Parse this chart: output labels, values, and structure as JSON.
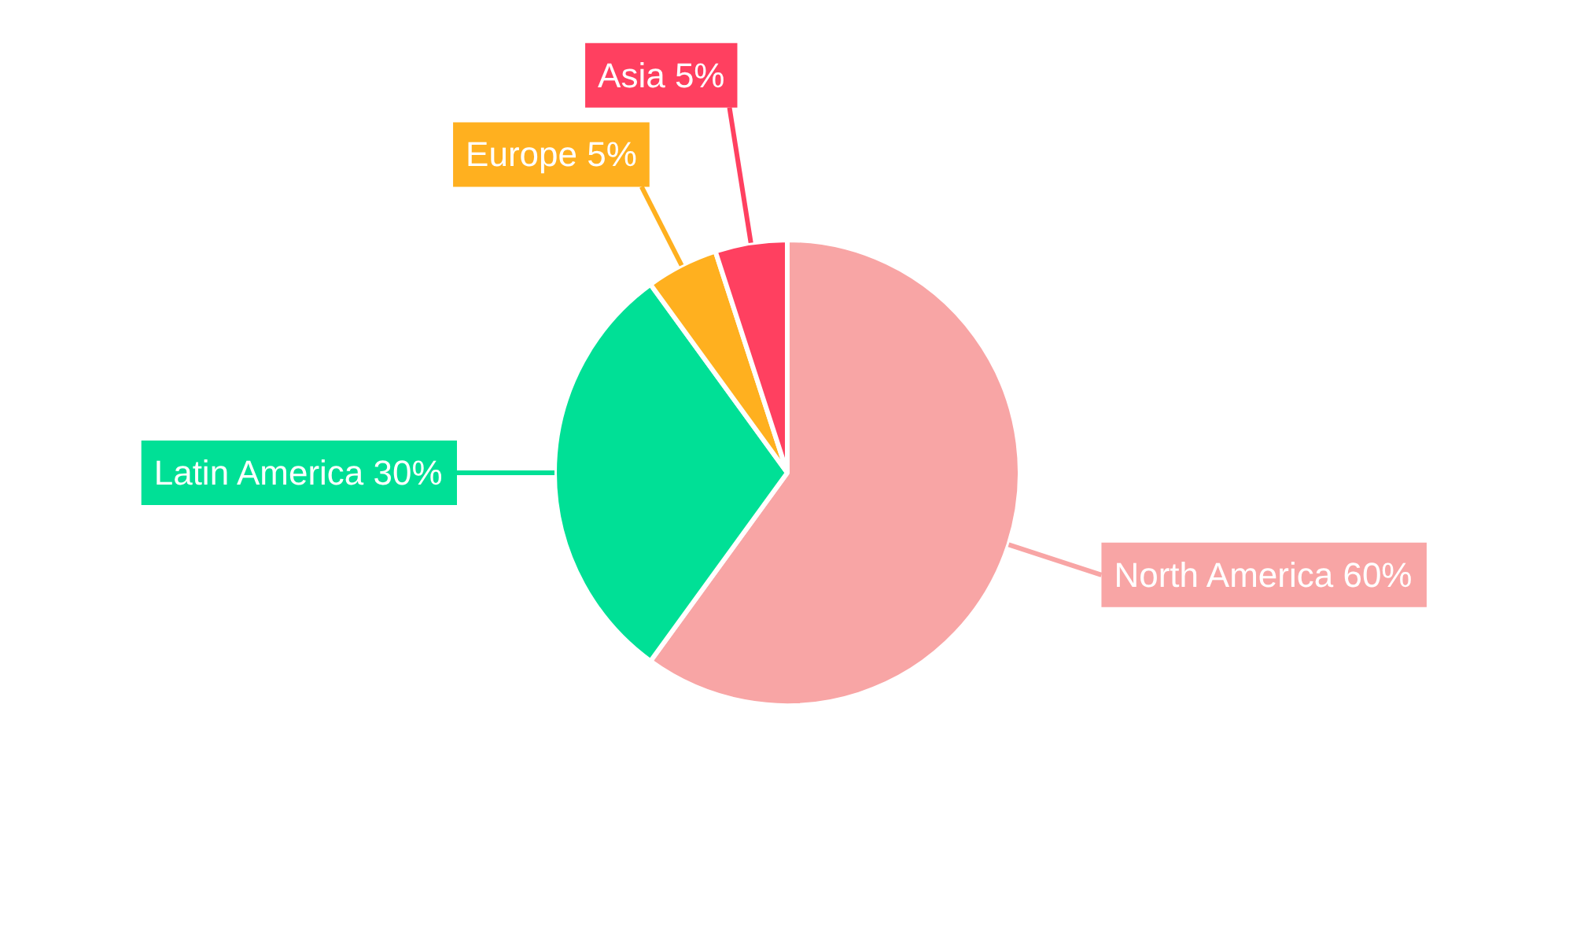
{
  "chart_data": {
    "type": "pie",
    "categories": [
      "North America",
      "Latin America",
      "Europe",
      "Asia"
    ],
    "values": [
      60,
      30,
      5,
      5
    ],
    "value_labels": [
      "60%",
      "30%",
      "5%",
      "5%"
    ],
    "colors": [
      "#f8a5a5",
      "#00e096",
      "#ffb01f",
      "#ff4060"
    ]
  }
}
